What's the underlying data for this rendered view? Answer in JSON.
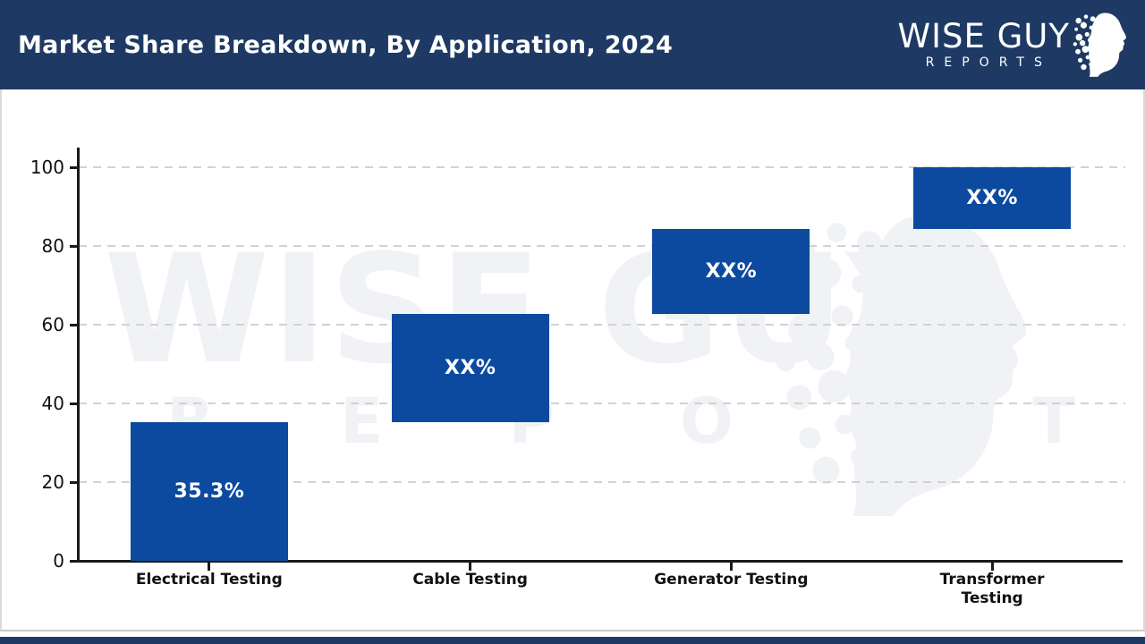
{
  "header": {
    "title": "Market Share Breakdown, By Application, 2024",
    "bg_color": "#1e3a64",
    "logo": {
      "line1": "WISE GUY",
      "line2": "REPORTS"
    }
  },
  "watermark": {
    "text_large": "WISE GUY",
    "text_small": "R E P O R T S"
  },
  "chart_data": {
    "type": "bar",
    "subtype": "waterfall-floating-bars",
    "title": "Market Share Breakdown, By Application, 2024",
    "unit": "%",
    "categories": [
      "Electrical Testing",
      "Cable Testing",
      "Generator Testing",
      "Transformer Testing"
    ],
    "category_display": [
      "Electrical Testing",
      "Cable Testing",
      "Generator Testing",
      "Transformer\nTesting"
    ],
    "segments": [
      {
        "category": "Electrical Testing",
        "start": 0,
        "end": 35.3,
        "value": 35.3,
        "label": "35.3%"
      },
      {
        "category": "Cable Testing",
        "start": 35.3,
        "end": 62.7,
        "value": 27.4,
        "label": "XX%"
      },
      {
        "category": "Generator Testing",
        "start": 62.7,
        "end": 84.3,
        "value": 21.6,
        "label": "XX%"
      },
      {
        "category": "Transformer Testing",
        "start": 84.3,
        "end": 100,
        "value": 15.7,
        "label": "XX%"
      }
    ],
    "ylim": [
      0,
      100
    ],
    "yticks": [
      0,
      20,
      40,
      60,
      80,
      100
    ],
    "grid": "horizontal-dashed",
    "legend": "none",
    "bar_color": "#0b4a9f",
    "bar_label_color": "#ffffff",
    "axis_color": "#1a1a1a",
    "gridline_color": "#d2d2d2"
  }
}
